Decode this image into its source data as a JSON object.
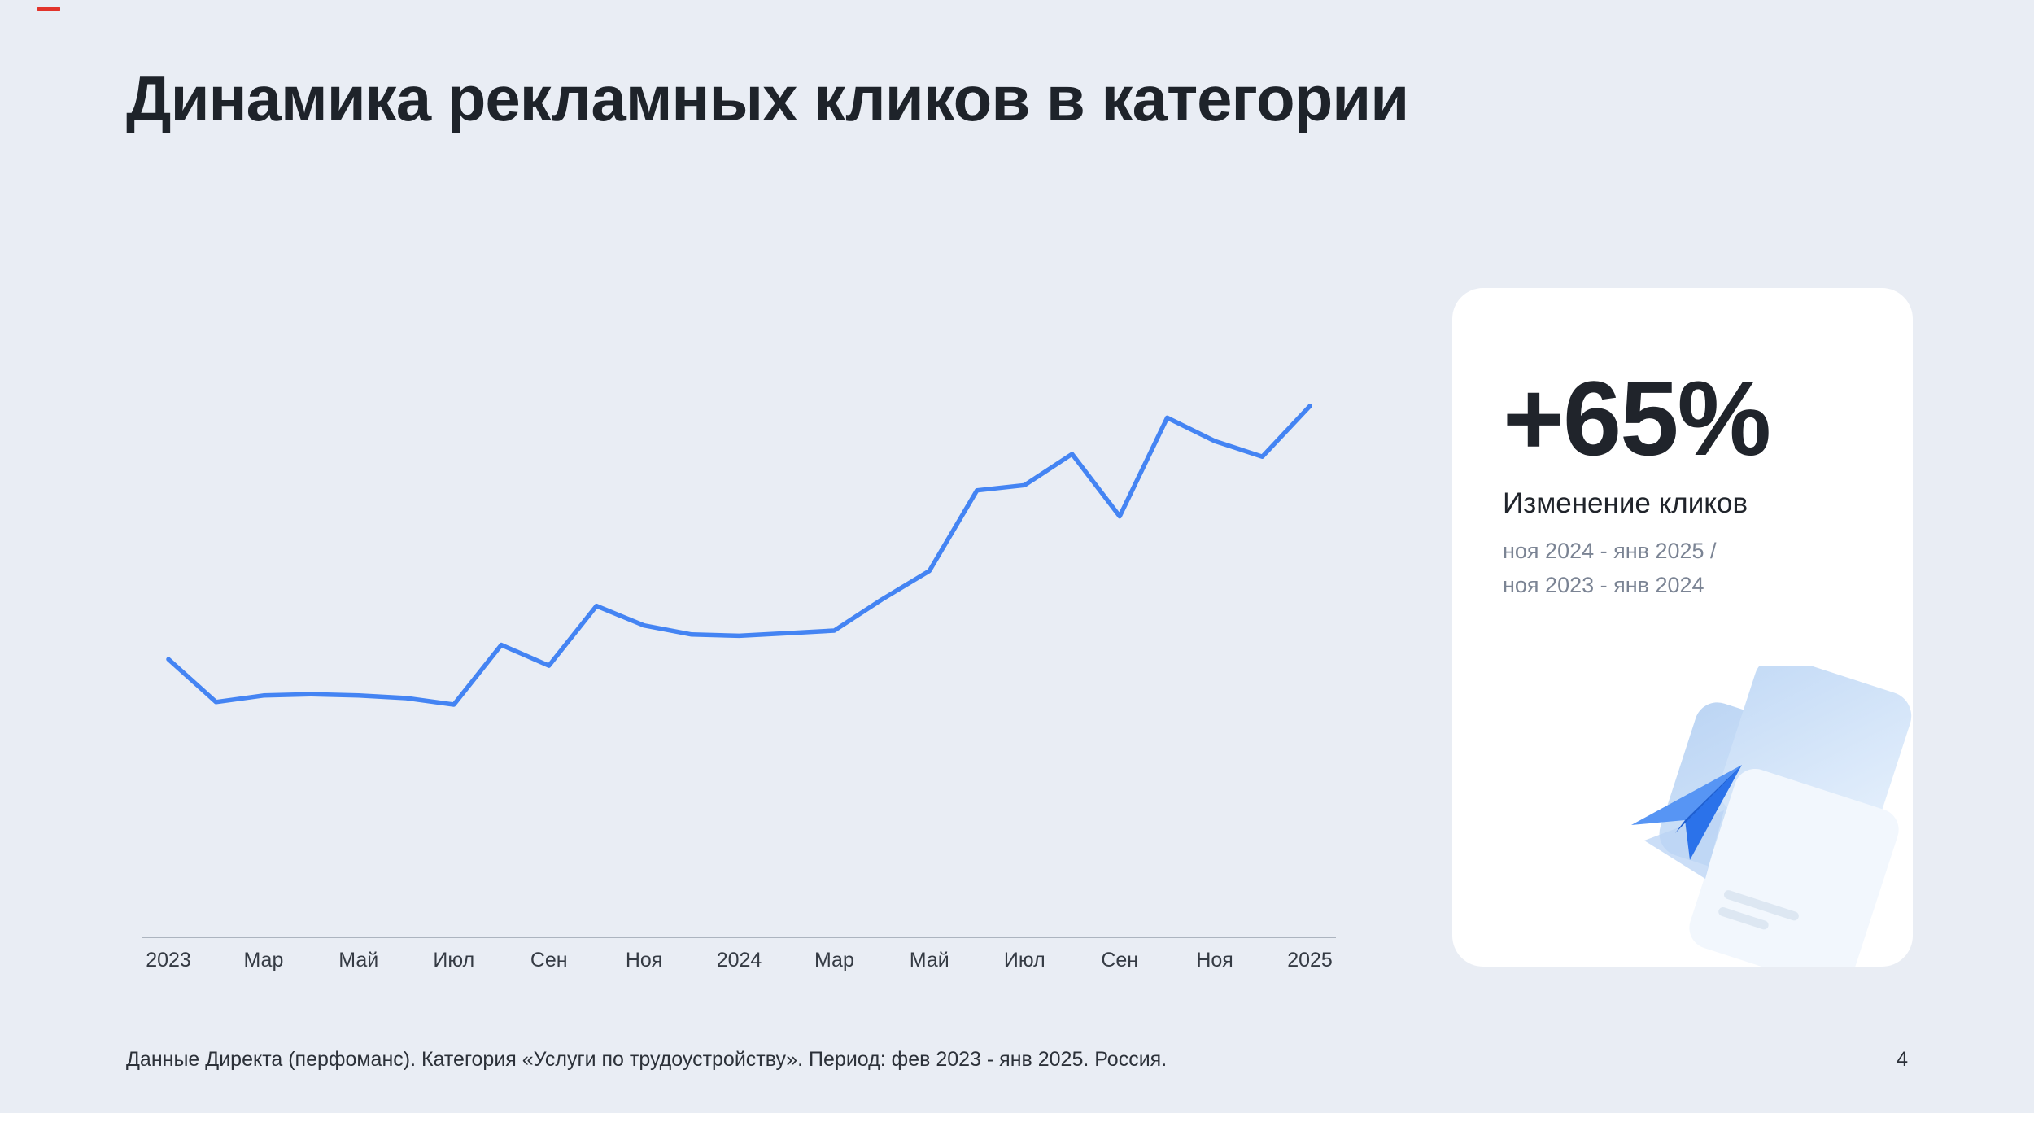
{
  "slide": {
    "title": "Динамика рекламных кликов в категории",
    "footer": "Данные Директа (перфоманс). Категория «Услуги по трудоустройству». Период: фев 2023 - янв 2025. Россия.",
    "page_number": "4"
  },
  "stat_card": {
    "value": "+65%",
    "label": "Изменение кликов",
    "period_line1": "ноя 2024 - янв 2025 /",
    "period_line2": "ноя 2023 - янв 2024"
  },
  "colors": {
    "background": "#e9edf4",
    "card_background": "#ffffff",
    "line": "#4484f3",
    "axis": "#98a1ad",
    "title_text": "#1e232a",
    "body_text": "#2c3139",
    "muted_text": "#7b8494"
  },
  "chart_data": {
    "type": "line",
    "title": "Динамика рекламных кликов в категории",
    "xlabel": "",
    "ylabel": "",
    "grid": false,
    "legend_position": "none",
    "y_axis_visible": false,
    "unit": "relative clicks index (no y-axis shown in original)",
    "x": [
      "янв 2023",
      "фев 2023",
      "мар 2023",
      "апр 2023",
      "май 2023",
      "июн 2023",
      "июл 2023",
      "авг 2023",
      "сен 2023",
      "окт 2023",
      "ноя 2023",
      "дек 2023",
      "янв 2024",
      "фев 2024",
      "мар 2024",
      "апр 2024",
      "май 2024",
      "июн 2024",
      "июл 2024",
      "авг 2024",
      "сен 2024",
      "окт 2024",
      "ноя 2024",
      "дек 2024",
      "янв 2025"
    ],
    "values": [
      213,
      180,
      185,
      186,
      185,
      183,
      178,
      224,
      208,
      254,
      239,
      232,
      231,
      233,
      235,
      259,
      281,
      343,
      347,
      371,
      323,
      399,
      381,
      369,
      408
    ],
    "tick_labels": [
      "2023",
      "Мар",
      "Май",
      "Июл",
      "Сен",
      "Ноя",
      "2024",
      "Мар",
      "Май",
      "Июл",
      "Сен",
      "Ноя",
      "2025"
    ],
    "annotation": "+65% изменение кликов: ноя 2024 - янв 2025 / ноя 2023 - янв 2024"
  }
}
